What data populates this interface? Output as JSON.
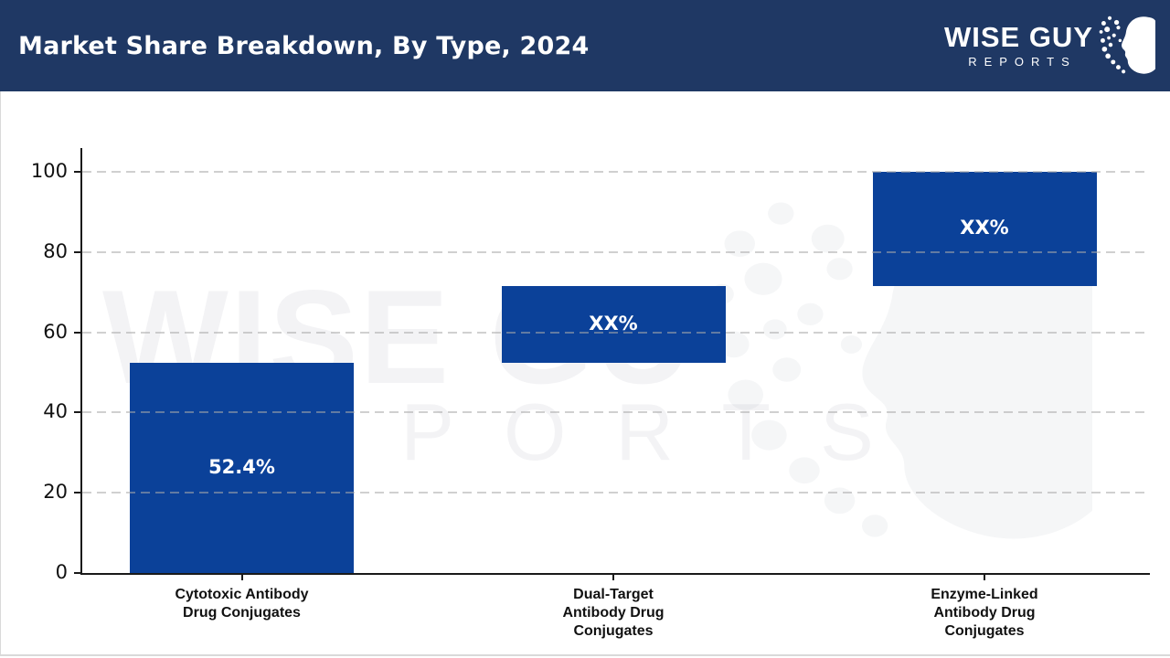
{
  "header": {
    "title": "Market Share Breakdown, By Type, 2024",
    "logo": {
      "name": "Wise Guy Reports",
      "line1": "WISE GUY",
      "line2": "REPORTS"
    }
  },
  "watermark": {
    "line1": "WISE GU",
    "line2": "REPORTS"
  },
  "colors": {
    "header_background": "#1f3864",
    "bar_fill": "#0b4199",
    "bar_label": "#ffffff",
    "axis": "#1a1a1a",
    "tick_label": "#111111",
    "gridline": "#d3d3d3",
    "background": "#ffffff"
  },
  "chart_data": {
    "type": "bar",
    "subtype": "stacked-waterfall-segments",
    "title": "Market Share Breakdown, By Type, 2024",
    "categories": [
      "Cytotoxic Antibody\nDrug Conjugates",
      "Dual-Target\nAntibody Drug\nConjugates",
      "Enzyme-Linked\nAntibody Drug\nConjugates"
    ],
    "segments": [
      {
        "category": "Cytotoxic Antibody Drug Conjugates",
        "start": 0,
        "end": 52.4,
        "label": "52.4%"
      },
      {
        "category": "Dual-Target Antibody Drug Conjugates",
        "start": 52.4,
        "end": 71.6,
        "label": "XX%"
      },
      {
        "category": "Enzyme-Linked Antibody Drug Conjugates",
        "start": 71.6,
        "end": 100,
        "label": "XX%"
      }
    ],
    "xlabel": "",
    "ylabel": "",
    "ylim": [
      0,
      100
    ],
    "yticks": [
      0,
      20,
      40,
      60,
      80,
      100
    ],
    "grid": "horizontal-dashed",
    "legend": "none"
  }
}
